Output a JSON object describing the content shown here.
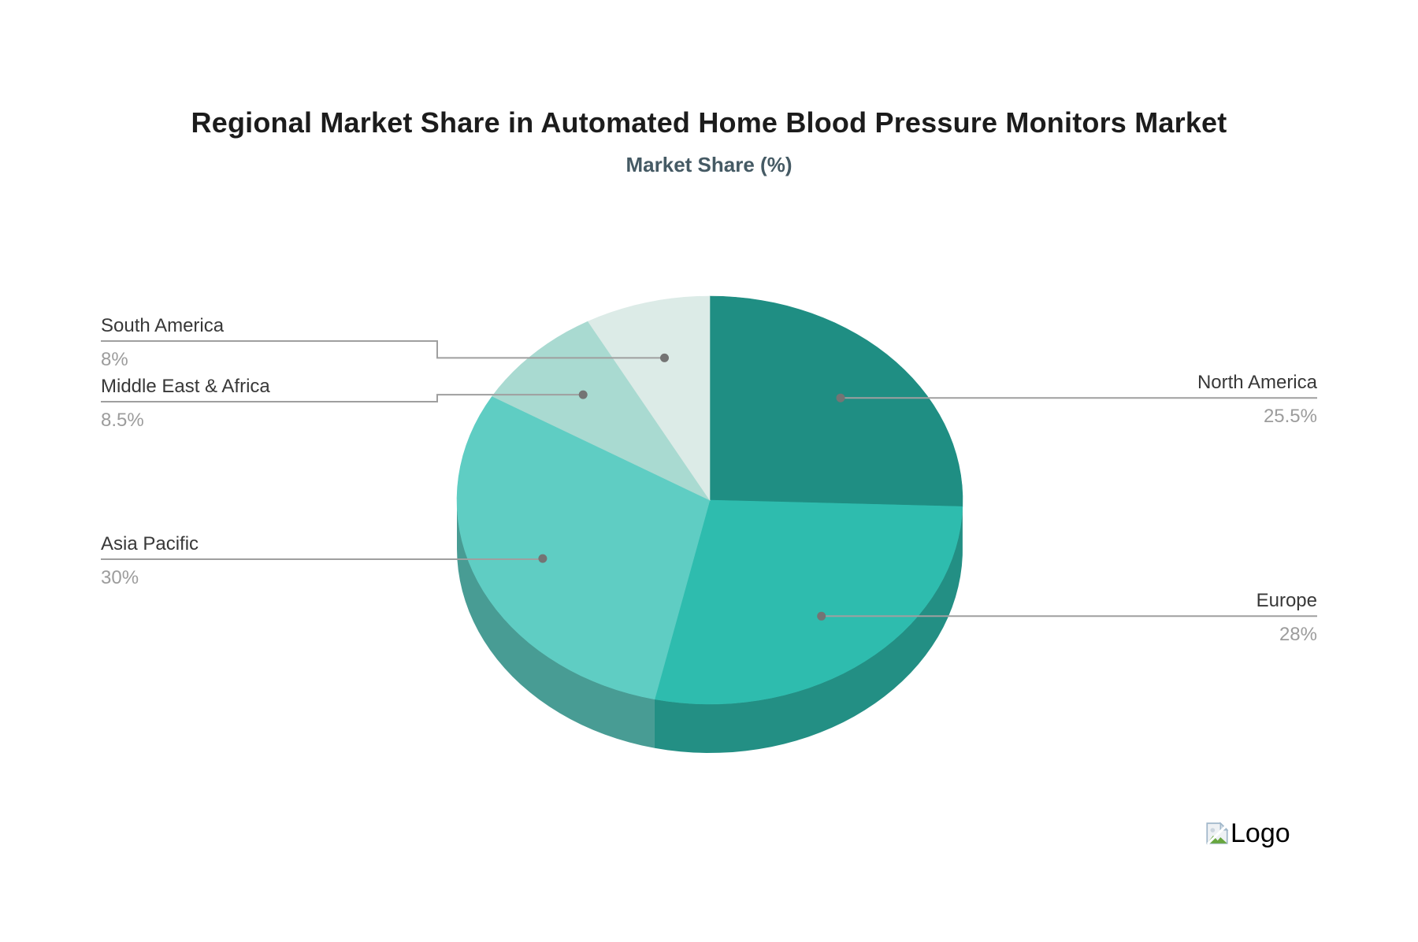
{
  "page": {
    "background": "#ffffff"
  },
  "header": {
    "title": "Regional Market Share in Automated Home Blood Pressure Monitors Market",
    "subtitle": "Market Share (%)"
  },
  "chart_data": {
    "type": "pie",
    "style": "3d",
    "title": "Regional Market Share in Automated Home Blood Pressure Monitors Market",
    "subtitle": "Market Share (%)",
    "unit": "%",
    "start_angle_deg": 0,
    "direction": "clockwise",
    "legend": "none",
    "slices": [
      {
        "label": "North America",
        "value": 25.5,
        "display_value": "25.5%",
        "color": "#1f8e83"
      },
      {
        "label": "Europe",
        "value": 28,
        "display_value": "28%",
        "color": "#2ebcae"
      },
      {
        "label": "Asia Pacific",
        "value": 30,
        "display_value": "30%",
        "color": "#5fcdc3"
      },
      {
        "label": "Middle East & Africa",
        "value": 8.5,
        "display_value": "8.5%",
        "color": "#a9dad1"
      },
      {
        "label": "South America",
        "value": 8,
        "display_value": "8%",
        "color": "#dcebe7"
      }
    ],
    "label_style": {
      "name_color": "#383838",
      "value_color": "#9c9c9c",
      "connector_color": "#9f9f9f",
      "dot_color": "#747474"
    }
  },
  "logo": {
    "alt_text": "Logo"
  }
}
